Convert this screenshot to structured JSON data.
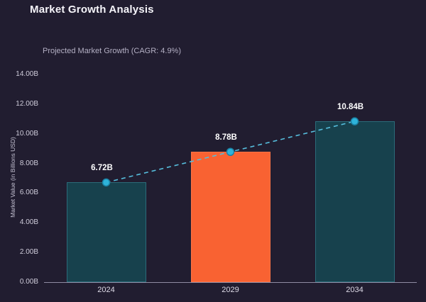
{
  "header": {
    "title": "Market Growth Analysis",
    "subtitle": "Projected Market Growth (CAGR: 4.9%)"
  },
  "colors": {
    "background": "#211d30",
    "bar_teal": "#17414d",
    "bar_teal_border": "#2b6b79",
    "bar_orange": "#f96232",
    "bar_orange_border": "#fb7345",
    "line": "#56bedd",
    "dot_fill": "#2eb3da",
    "dot_stroke": "#1b82a4",
    "axis": "#8f8ca3"
  },
  "chart_data": {
    "type": "bar",
    "title": "Market Growth Analysis",
    "subtitle": "Projected Market Growth (CAGR: 4.9%)",
    "xlabel": "",
    "ylabel": "Market Value (in Billions USD)",
    "categories": [
      "2024",
      "2029",
      "2034"
    ],
    "values": [
      6.72,
      8.78,
      10.84
    ],
    "value_labels": [
      "6.72B",
      "8.78B",
      "10.84B"
    ],
    "bar_color_keys": [
      "bar_teal",
      "bar_orange",
      "bar_teal"
    ],
    "bar_border_keys": [
      "bar_teal_border",
      "bar_orange_border",
      "bar_teal_border"
    ],
    "trendline": {
      "style": "dashed",
      "markers": "circle"
    },
    "ylim": [
      0,
      14
    ],
    "ytick_values": [
      0,
      2,
      4,
      6,
      8,
      10,
      12,
      14
    ],
    "ytick_labels": [
      "0.00B",
      "2.00B",
      "4.00B",
      "6.00B",
      "8.00B",
      "10.00B",
      "12.00B",
      "14.00B"
    ],
    "grid": false,
    "legend": false
  }
}
